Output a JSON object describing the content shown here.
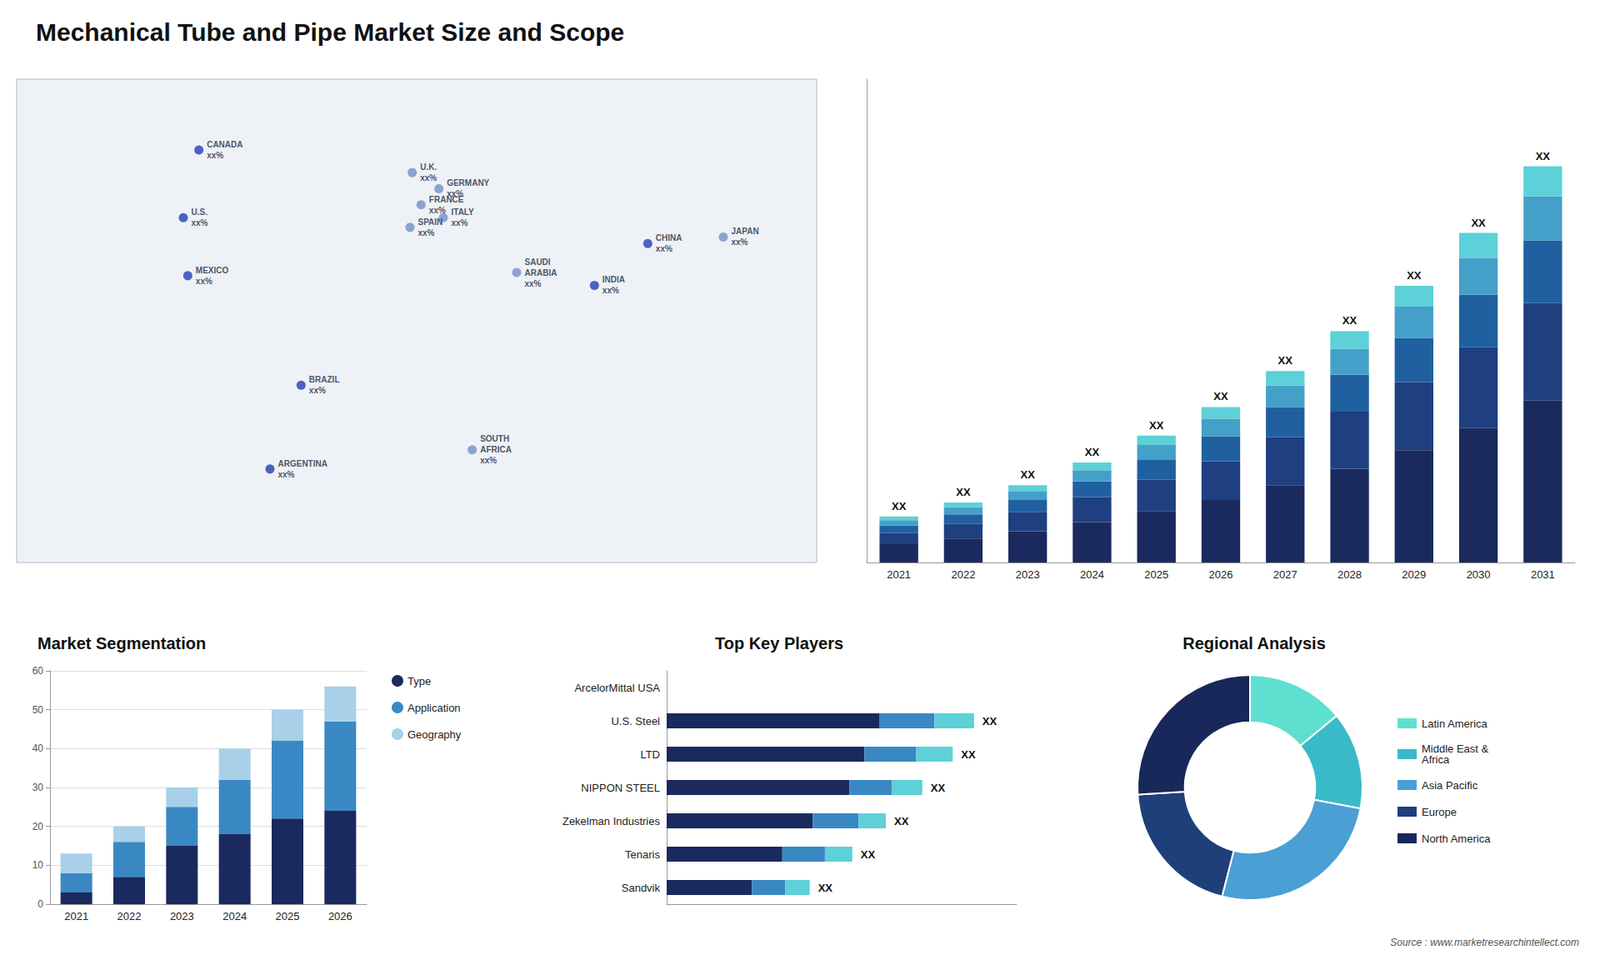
{
  "title": "Mechanical Tube and Pipe Market Size and Scope",
  "annotations": [
    "Source : www.marketresearchintellect.com"
  ],
  "chart_data": [
    {
      "type": "scatter",
      "x": [
        -98,
        -105,
        -103,
        -52,
        -66,
        -2,
        2,
        -3,
        10,
        12,
        45,
        25,
        104,
        80,
        138
      ],
      "values": [
        63,
        42,
        24,
        -10,
        -36,
        56,
        46,
        39,
        51,
        42,
        25,
        -30,
        34,
        21,
        36
      ],
      "annotations": [
        "CANADA\nxx%",
        "U.S.\nxx%",
        "MEXICO\nxx%",
        "BRAZIL\nxx%",
        "ARGENTINA\nxx%",
        "U.K.\nxx%",
        "FRANCE\nxx%",
        "SPAIN\nxx%",
        "GERMANY\nxx%",
        "ITALY\nxx%",
        "SAUDI\nARABIA\nxx%",
        "SOUTH\nAFRICA\nxx%",
        "CHINA\nxx%",
        "INDIA\nxx%",
        "JAPAN\nxx%"
      ],
      "colors": [
        "#2040b0",
        "#2040b0",
        "#2040b0",
        "#2040b0",
        "#2040b0",
        "#7090c8",
        "#7090c8",
        "#7090c8",
        "#7090c8",
        "#7090c8",
        "#7090c8",
        "#7090c8",
        "#2040b0",
        "#2040b0",
        "#7090c8"
      ],
      "xlim": [
        -180,
        180
      ],
      "ylim": [
        -65,
        85
      ],
      "tick_labels": false
    },
    {
      "type": "bar",
      "stacked": true,
      "categories": [
        "2021",
        "2022",
        "2023",
        "2024",
        "2025",
        "2026",
        "2027",
        "2028",
        "2029",
        "2030",
        "2031"
      ],
      "series": [
        {
          "color": "#1a2a5e",
          "values": [
            1.0,
            1.3,
            1.7,
            2.2,
            2.8,
            3.4,
            4.2,
            5.1,
            6.1,
            7.3,
            8.8
          ]
        },
        {
          "color": "#1e3f80",
          "values": [
            0.6,
            0.8,
            1.05,
            1.35,
            1.7,
            2.1,
            2.6,
            3.1,
            3.7,
            4.4,
            5.3
          ]
        },
        {
          "color": "#2060a0",
          "values": [
            0.4,
            0.52,
            0.65,
            0.85,
            1.1,
            1.35,
            1.65,
            2.0,
            2.4,
            2.85,
            3.4
          ]
        },
        {
          "color": "#44a0c8",
          "values": [
            0.3,
            0.38,
            0.48,
            0.62,
            0.78,
            0.96,
            1.17,
            1.42,
            1.7,
            2.0,
            2.4
          ]
        },
        {
          "color": "#5dd0d8",
          "values": [
            0.2,
            0.26,
            0.32,
            0.41,
            0.52,
            0.64,
            0.78,
            0.95,
            1.14,
            1.36,
            1.63
          ]
        }
      ],
      "ylim": [
        0,
        26.2666
      ],
      "tick_labels": "x",
      "annotations": [
        {
          "text": "XX",
          "category": "2021"
        },
        {
          "text": "XX",
          "category": "2022"
        },
        {
          "text": "XX",
          "category": "2023"
        },
        {
          "text": "XX",
          "category": "2024"
        },
        {
          "text": "XX",
          "category": "2025"
        },
        {
          "text": "XX",
          "category": "2026"
        },
        {
          "text": "XX",
          "category": "2027"
        },
        {
          "text": "XX",
          "category": "2028"
        },
        {
          "text": "XX",
          "category": "2029"
        },
        {
          "text": "XX",
          "category": "2030"
        },
        {
          "text": "XX",
          "category": "2031"
        }
      ]
    },
    {
      "type": "bar",
      "title": "Market Segmentation",
      "stacked": true,
      "categories": [
        "2021",
        "2022",
        "2023",
        "2024",
        "2025",
        "2026"
      ],
      "series": [
        {
          "name": "Type",
          "color": "#1a2a5e",
          "values": [
            3,
            7,
            15,
            18,
            22,
            24
          ]
        },
        {
          "name": "Application",
          "color": "#3a88c3",
          "values": [
            5,
            9,
            10,
            14,
            20,
            23
          ]
        },
        {
          "name": "Geography",
          "color": "#a8d0e8",
          "values": [
            5,
            4,
            5,
            8,
            8,
            9
          ]
        }
      ],
      "ylim": [
        0,
        60
      ],
      "yticks": [
        0,
        10,
        20,
        30,
        40,
        50,
        60
      ],
      "grid": true,
      "legend": "right"
    },
    {
      "type": "bar",
      "title": "Top Key Players",
      "orientation": "horizontal",
      "stacked": true,
      "categories": [
        "ArcelorMittal USA",
        "U.S. Steel",
        "LTD",
        "NIPPON STEEL",
        "Zekelman Industries",
        "Tenaris",
        "Sandvik"
      ],
      "series": [
        {
          "color": "#1a2a5e",
          "values": [
            0,
            70,
            65,
            60,
            48,
            38,
            28
          ]
        },
        {
          "color": "#3a88c3",
          "values": [
            0,
            18,
            17,
            14,
            15,
            14,
            11
          ]
        },
        {
          "color": "#5dd0d8",
          "values": [
            0,
            13,
            12,
            10,
            9,
            9,
            8
          ]
        }
      ],
      "xlim": [
        0,
        115
      ],
      "tick_labels": "y",
      "annotations": [
        {
          "text": "XX",
          "category": "U.S. Steel"
        },
        {
          "text": "XX",
          "category": "LTD"
        },
        {
          "text": "XX",
          "category": "NIPPON STEEL"
        },
        {
          "text": "XX",
          "category": "Zekelman Industries"
        },
        {
          "text": "XX",
          "category": "Tenaris"
        },
        {
          "text": "XX",
          "category": "Sandvik"
        }
      ]
    },
    {
      "type": "donut",
      "title": "Regional Analysis",
      "categories": [
        "Latin America",
        "Middle East &\nAfrica",
        "Asia Pacific",
        "Europe",
        "North America"
      ],
      "values": [
        14,
        14,
        26,
        20,
        26
      ],
      "colors": [
        "#5de0d0",
        "#3abac8",
        "#4a9fd4",
        "#1e3f7a",
        "#18285a"
      ],
      "legend": "right"
    }
  ]
}
